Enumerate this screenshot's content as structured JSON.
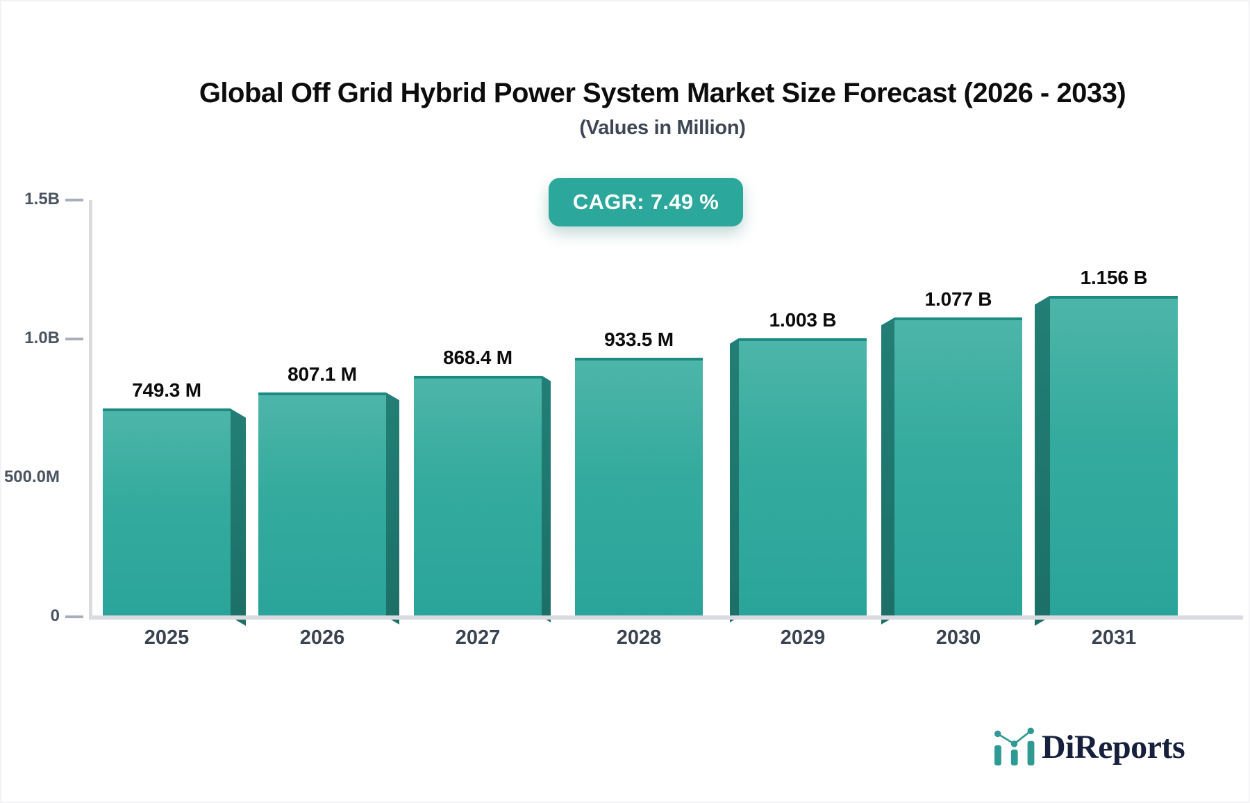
{
  "header": {
    "title": "Global Off Grid Hybrid Power System Market Size Forecast (2026 - 2033)",
    "subtitle": "(Values in Million)"
  },
  "badge": {
    "label": "CAGR: 7.49 %"
  },
  "chart_data": {
    "type": "bar",
    "title": "Global Off Grid Hybrid Power System Market Size Forecast (2026 - 2033)",
    "subtitle": "(Values in Million)",
    "cagr_percent": 7.49,
    "categories": [
      "2025",
      "2026",
      "2027",
      "2028",
      "2029",
      "2030",
      "2031"
    ],
    "values_millions": [
      749.3,
      807.1,
      868.4,
      933.5,
      1003,
      1077,
      1156
    ],
    "value_labels": [
      "749.3 M",
      "807.1 M",
      "868.4 M",
      "933.5 M",
      "1.003 B",
      "1.077 B",
      "1.156 B"
    ],
    "xlabel": "",
    "ylabel": "",
    "ylim_millions": [
      0,
      1500
    ],
    "yticks": [
      {
        "label": "1.5B",
        "value_millions": 1500,
        "dash": true
      },
      {
        "label": "1.0B",
        "value_millions": 1000,
        "dash": true
      },
      {
        "label": "500.0M",
        "value_millions": 500,
        "dash": false
      },
      {
        "label": "0",
        "value_millions": 0,
        "dash": true
      }
    ],
    "grid": false,
    "legend": "none",
    "bar_style": "3d-perspective-teal"
  },
  "colors": {
    "bar_face_top": "#4DB5A9",
    "bar_face_bottom": "#2AA49A",
    "bar_top_edge": "#1D8B81",
    "bar_side_face": "#1F7A70",
    "badge_background": "#2BA79B",
    "badge_text": "#FFFFFF",
    "axis_line": "#D9DBE0",
    "tick_dash": "#A9AFB9",
    "tick_label_text": "#4A5361",
    "year_label_text": "#3A4350",
    "value_label_text": "#0B0B0B",
    "title_text": "#0C0C0C",
    "subtitle_text": "#3E4654",
    "logo_teal": "#2E9A93",
    "logo_navy": "#16203C"
  },
  "logo": {
    "text": "DiReports",
    "icon": "bar-chart-logo-icon"
  }
}
